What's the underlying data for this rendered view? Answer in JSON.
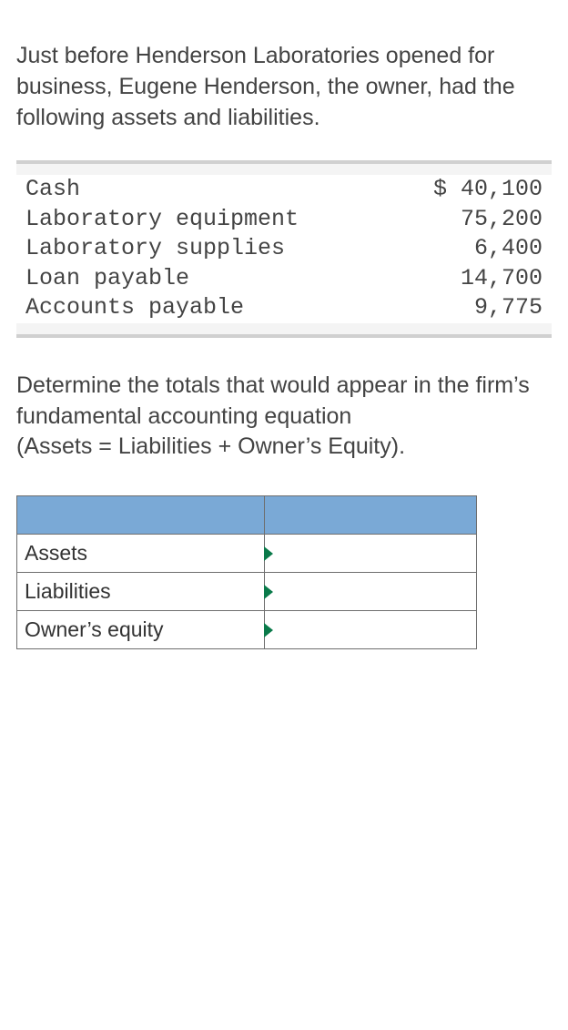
{
  "intro_text": "Just before Henderson Laboratories opened for business, Eugene Henderson, the owner, had the following assets and liabilities.",
  "items": [
    {
      "label": "Cash",
      "value": "$ 40,100"
    },
    {
      "label": "Laboratory equipment",
      "value": "75,200"
    },
    {
      "label": "Laboratory supplies",
      "value": "6,400"
    },
    {
      "label": "Loan payable",
      "value": "14,700"
    },
    {
      "label": "Accounts payable",
      "value": "9,775"
    }
  ],
  "question_line1": "Determine the totals that would appear in the firm’s fundamental accounting equation",
  "question_line2": "(Assets = Liabilities + Owner’s Equity).",
  "answer_rows": [
    {
      "label": "Assets",
      "value": ""
    },
    {
      "label": "Liabilities",
      "value": ""
    },
    {
      "label": "Owner’s equity",
      "value": ""
    }
  ],
  "colors": {
    "header_bg": "#7aa9d6",
    "border": "#6e6e6e",
    "marker": "#0a7a4a",
    "divider": "#d0d0d0",
    "text": "#434343"
  }
}
